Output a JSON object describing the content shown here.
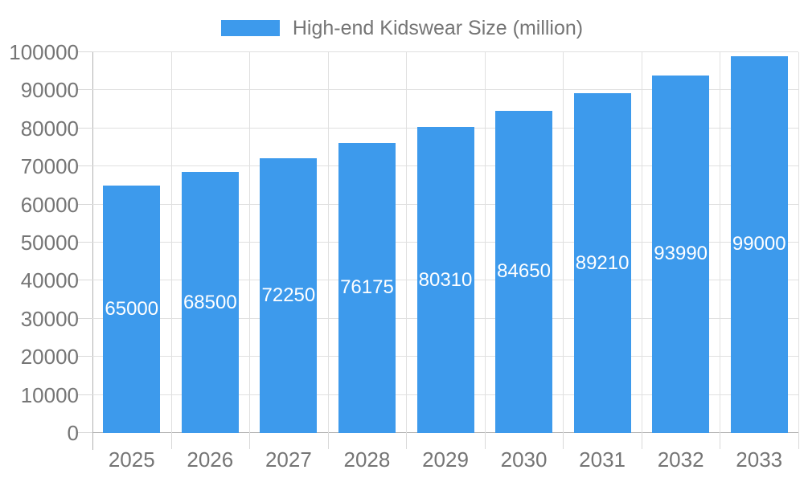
{
  "chart_data": {
    "type": "bar",
    "title": "High-end Kidswear Size (million)",
    "categories": [
      "2025",
      "2026",
      "2027",
      "2028",
      "2029",
      "2030",
      "2031",
      "2032",
      "2033"
    ],
    "series": [
      {
        "name": "High-end Kidswear Size (million)",
        "values": [
          65000,
          68500,
          72250,
          76175,
          80310,
          84650,
          89210,
          93990,
          99000
        ]
      }
    ],
    "xlabel": "",
    "ylabel": "",
    "ylim": [
      0,
      100000
    ],
    "ytick_interval": 10000,
    "ytick_labels": [
      "0",
      "10000",
      "20000",
      "30000",
      "40000",
      "50000",
      "60000",
      "70000",
      "80000",
      "90000",
      "100000"
    ],
    "grid": true,
    "legend_position": "top-center",
    "value_label_position": "inside-middle",
    "colors": {
      "bar": "#3D9AEC",
      "legend_swatch": "#3D9AEC",
      "axis_line": "#B0B0B0",
      "gridline": "#E0E0E0",
      "tick": "#D9D9D9",
      "axis_text": "#757575",
      "legend_text": "#757575",
      "value_label_text": "#FFFFFF",
      "background": "#FFFFFF"
    }
  }
}
